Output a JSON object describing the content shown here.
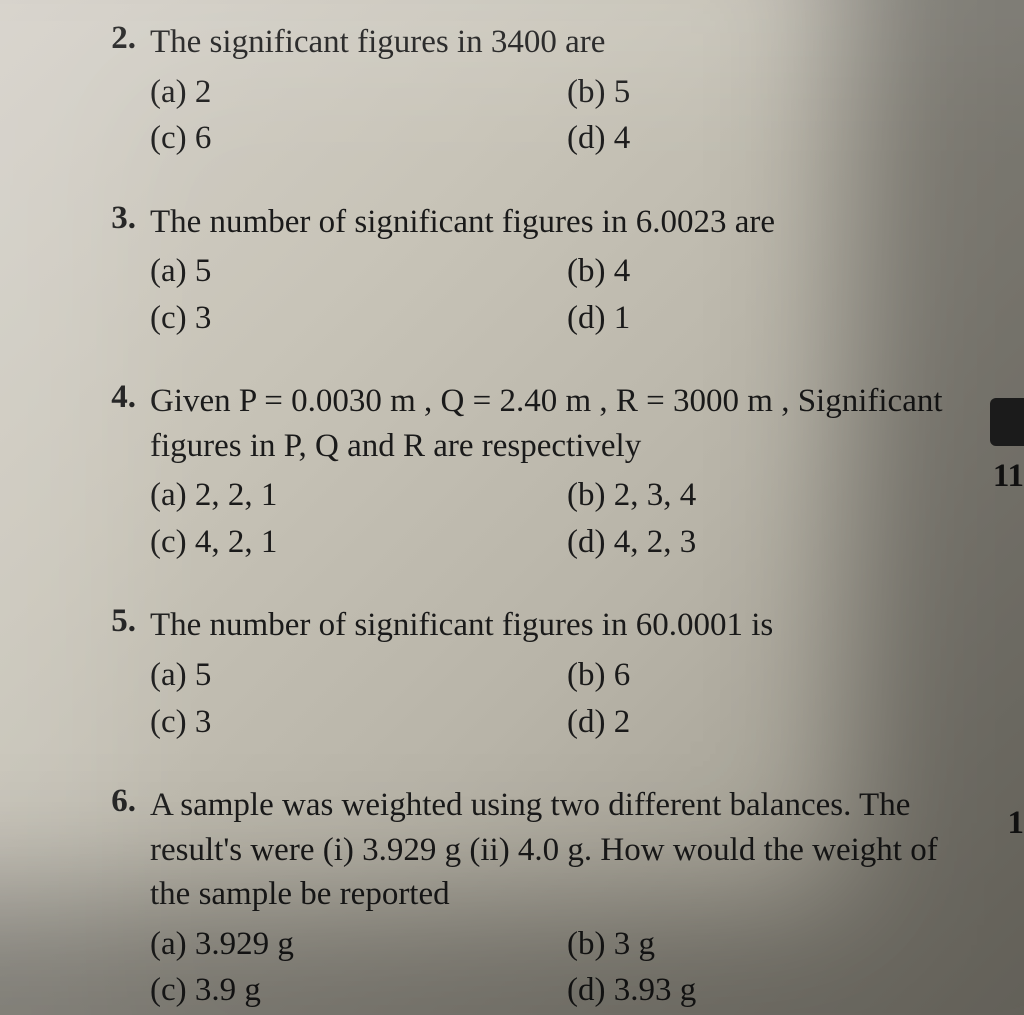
{
  "text_color": "#1a1a1a",
  "background_gradient": [
    "#d4d0c8",
    "#c8c4b8",
    "#b8b4a8",
    "#989488"
  ],
  "font_family": "Times New Roman",
  "base_fontsize_pt": 25,
  "side_markers": [
    "11",
    "1"
  ],
  "questions": [
    {
      "number": "2.",
      "stem": "The significant figures in 3400 are",
      "options": [
        {
          "label": "(a)",
          "text": "2"
        },
        {
          "label": "(b)",
          "text": "5"
        },
        {
          "label": "(c)",
          "text": "6"
        },
        {
          "label": "(d)",
          "text": "4"
        }
      ]
    },
    {
      "number": "3.",
      "stem": "The number of significant figures in 6.0023 are",
      "options": [
        {
          "label": "(a)",
          "text": "5"
        },
        {
          "label": "(b)",
          "text": "4"
        },
        {
          "label": "(c)",
          "text": "3"
        },
        {
          "label": "(d)",
          "text": "1"
        }
      ]
    },
    {
      "number": "4.",
      "stem": "Given P = 0.0030 m , Q = 2.40 m , R = 3000 m , Significant figures in P, Q and R are respectively",
      "options": [
        {
          "label": "(a)",
          "text": "2, 2, 1"
        },
        {
          "label": "(b)",
          "text": "2, 3, 4"
        },
        {
          "label": "(c)",
          "text": "4, 2, 1"
        },
        {
          "label": "(d)",
          "text": "4, 2, 3"
        }
      ]
    },
    {
      "number": "5.",
      "stem": "The number of significant figures in 60.0001 is",
      "options": [
        {
          "label": "(a)",
          "text": "5"
        },
        {
          "label": "(b)",
          "text": "6"
        },
        {
          "label": "(c)",
          "text": "3"
        },
        {
          "label": "(d)",
          "text": "2"
        }
      ]
    },
    {
      "number": "6.",
      "stem": "A sample was weighted using two different balances. The result's were (i) 3.929 g (ii) 4.0 g. How would the weight of the sample be reported",
      "options": [
        {
          "label": "(a)",
          "text": "3.929 g"
        },
        {
          "label": "(b)",
          "text": "3 g"
        },
        {
          "label": "(c)",
          "text": "3.9 g"
        },
        {
          "label": "(d)",
          "text": "3.93 g"
        }
      ]
    }
  ]
}
